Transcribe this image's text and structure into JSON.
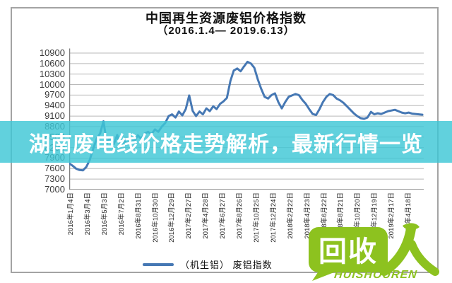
{
  "banner": {
    "text": "湖南废电线价格走势解析，最新行情一览"
  },
  "logo": {
    "bubble_text": "回收",
    "brand": "HUISHOUREN"
  },
  "colors": {
    "line_blue": "#4678b4",
    "grid_gray": "#b9b9b9",
    "axis_gray": "#7f7f7f",
    "banner_overlay": "rgba(62,199,213,0.82)",
    "logo_green": "#8dc21f"
  },
  "chart_data": {
    "type": "line",
    "title": "中国再生资源废铝价格指数",
    "subtitle": "（2016.1.4— 2019.6.13）",
    "ylabel": "",
    "xlabel": "",
    "ylim": [
      7000,
      10900
    ],
    "y_ticks": [
      7000,
      7300,
      7600,
      7900,
      8200,
      8500,
      8800,
      9100,
      9400,
      9700,
      10000,
      10300,
      10600,
      10900
    ],
    "grid": true,
    "legend_position": "bottom",
    "legend": [
      {
        "name": "（机生铝） 废铝指数",
        "color": "#4678b4"
      }
    ],
    "x_tick_labels": [
      "2016年1月4日",
      "2016年3月4日",
      "2016年5月3日",
      "2016年7月2日",
      "2016年8月31日",
      "2016年10月30日",
      "2016年12月29日",
      "2017年2月27日",
      "2017年4月28日",
      "2017年6月27日",
      "2017年8月26日",
      "2017年10月25日",
      "2017年12月24日",
      "2018年2月22日",
      "2018年4月23日",
      "2018年6月22日",
      "2018年8月21日",
      "2018年10月20日",
      "2018年12月19日",
      "2019年2月17日",
      "2019年4月18日"
    ],
    "series": [
      {
        "name": "（机生铝） 废铝指数",
        "values": [
          7750,
          7680,
          7600,
          7560,
          7550,
          7650,
          7850,
          8170,
          8450,
          8600,
          8950,
          8320,
          8500,
          8300,
          8560,
          8230,
          8400,
          8300,
          8480,
          8380,
          8550,
          8450,
          8600,
          8650,
          8580,
          8720,
          8650,
          8800,
          8900,
          9100,
          9150,
          9060,
          9230,
          9120,
          9300,
          9690,
          9250,
          9100,
          9230,
          9150,
          9320,
          9240,
          9380,
          9300,
          9450,
          9520,
          9620,
          10100,
          10400,
          10460,
          10380,
          10520,
          10650,
          10600,
          10480,
          10150,
          9880,
          9650,
          9600,
          9700,
          9750,
          9500,
          9320,
          9500,
          9650,
          9690,
          9730,
          9700,
          9560,
          9450,
          9300,
          9160,
          9130,
          9300,
          9500,
          9650,
          9730,
          9700,
          9600,
          9550,
          9480,
          9380,
          9280,
          9180,
          9100,
          9040,
          9020,
          9060,
          9220,
          9150,
          9180,
          9160,
          9200,
          9240,
          9260,
          9280,
          9240,
          9200,
          9180,
          9200,
          9170,
          9160,
          9150,
          9140
        ]
      }
    ]
  }
}
